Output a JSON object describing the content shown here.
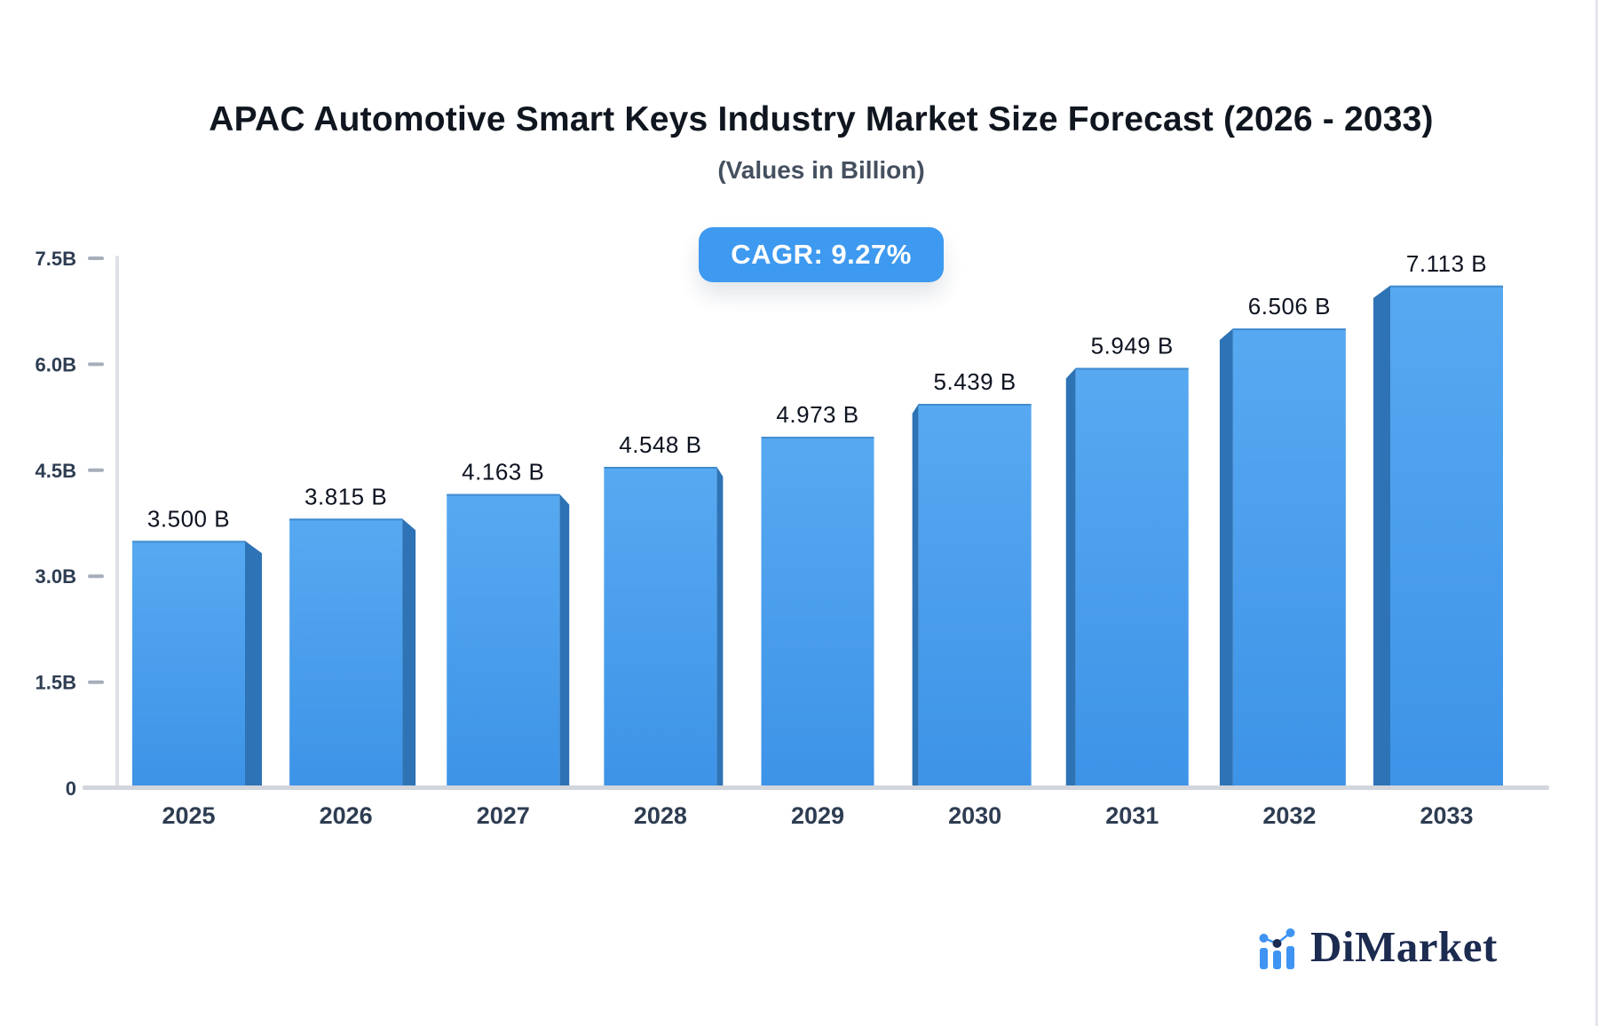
{
  "header": {
    "title": "APAC Automotive Smart Keys Industry Market Size Forecast (2026 - 2033)",
    "subtitle": "(Values in Billion)",
    "cagr_badge": "CAGR: 9.27%"
  },
  "chart_data": {
    "type": "bar",
    "title": "APAC Automotive Smart Keys Industry Market Size Forecast (2026 - 2033)",
    "subtitle": "(Values in Billion)",
    "cagr": "9.27%",
    "categories": [
      "2025",
      "2026",
      "2027",
      "2028",
      "2029",
      "2030",
      "2031",
      "2032",
      "2033"
    ],
    "values": [
      3.5,
      3.815,
      4.163,
      4.548,
      4.973,
      5.439,
      5.949,
      6.506,
      7.113
    ],
    "value_labels": [
      "3.500 B",
      "3.815 B",
      "4.163 B",
      "4.548 B",
      "4.973 B",
      "5.439 B",
      "5.949 B",
      "6.506 B",
      "7.113 B"
    ],
    "xlabel": "",
    "ylabel": "",
    "unit": "Billion",
    "ylim": [
      0,
      7.5
    ],
    "y_ticks": [
      "0",
      "1.5B",
      "3.0B",
      "4.5B",
      "6.0B",
      "7.5B"
    ],
    "grid": false,
    "legend": false,
    "bar_style": "3d-perspective",
    "colors": {
      "bar_top": "#57a9f1",
      "bar_bottom": "#3d93e7",
      "bar_side": "#2e73b5",
      "bar_top_edge": "#3e86c8",
      "axis_line": "#dde0e5",
      "baseline": "#d2d6dc",
      "tick": "#a6aeba",
      "axis_text": "#2e3d52",
      "value_text": "#0d1320"
    }
  },
  "badge": {
    "background": "#3e9af0",
    "text_color": "#ffffff"
  },
  "branding": {
    "logo_text": "DiMarket",
    "logo_navy": "#1c2b50",
    "logo_accent": "#3f93f2"
  }
}
